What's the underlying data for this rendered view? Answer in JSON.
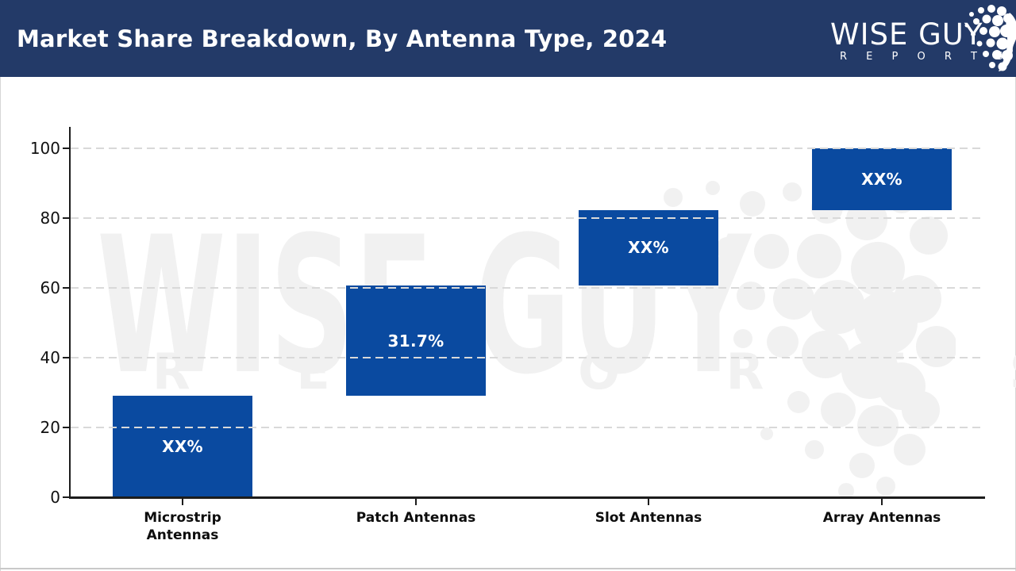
{
  "header": {
    "title": "Market Share Breakdown, By Antenna Type, 2024",
    "bg_color": "#233a68",
    "logo": {
      "line1": "WISE GUY",
      "line2": "R E P O R T S"
    }
  },
  "watermark": {
    "line1": "WISE GUY",
    "line2": "R E P O R T S"
  },
  "chart_data": {
    "type": "bar",
    "subtype": "floating-waterfall",
    "title": "Market Share Breakdown, By Antenna Type, 2024",
    "categories": [
      "Microstrip Antennas",
      "Patch Antennas",
      "Slot Antennas",
      "Array Antennas"
    ],
    "tick_lines": [
      [
        "Microstrip",
        "Antennas"
      ],
      [
        "Patch Antennas"
      ],
      [
        "Slot Antennas"
      ],
      [
        "Array Antennas"
      ]
    ],
    "segments": [
      {
        "category": "Microstrip Antennas",
        "start": 0,
        "end": 29,
        "label": "XX%"
      },
      {
        "category": "Patch Antennas",
        "start": 29,
        "end": 60.7,
        "label": "31.7%"
      },
      {
        "category": "Slot Antennas",
        "start": 60.7,
        "end": 82.3,
        "label": "XX%"
      },
      {
        "category": "Array Antennas",
        "start": 82.3,
        "end": 100,
        "label": "XX%"
      }
    ],
    "yticks": [
      0,
      20,
      40,
      60,
      80,
      100
    ],
    "ylim": [
      0,
      106
    ],
    "xlabel": "",
    "ylabel": "",
    "bar_color": "#0a4aa0",
    "bar_label_color": "#ffffff",
    "grid": "horizontal-dashed",
    "gridline_color": "#d9d9d9",
    "legend": "none"
  }
}
